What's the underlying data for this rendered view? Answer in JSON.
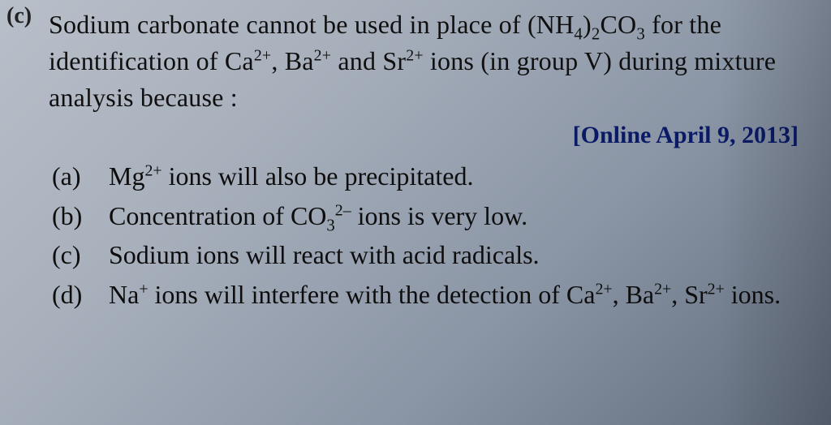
{
  "page": {
    "background_gradient": [
      "#b8bfc9",
      "#a8b0bc",
      "#8a95a5",
      "#5f6a7a"
    ],
    "text_color": "#0f0f0f",
    "font_family": "Georgia, Times New Roman, serif"
  },
  "corner": "(c)",
  "question": {
    "stem_html": "Sodium carbonate cannot be used in place of (NH<sub>4</sub>)<sub>2</sub>CO<sub>3</sub> for the identification of Ca<sup>2+</sup>, Ba<sup>2+</sup> and Sr<sup>2+</sup> ions (in group V) during mixture analysis because :",
    "source": "[Online April 9, 2013]",
    "source_color": "#0a1a66",
    "stem_fontsize": 32,
    "source_fontsize": 30
  },
  "options": [
    {
      "marker": "(a)",
      "text_html": "Mg<sup>2+</sup> ions will also be precipitated."
    },
    {
      "marker": "(b)",
      "text_html": "Concentration of CO<sub>3</sub><sup>2–</sup> ions is very low."
    },
    {
      "marker": "(c)",
      "text_html": "Sodium ions will react with acid radicals."
    },
    {
      "marker": "(d)",
      "text_html": "Na<sup>+</sup> ions will interfere with the detection of Ca<sup>2+</sup>, Ba<sup>2+</sup>, Sr<sup>2+</sup> ions."
    }
  ],
  "option_fontsize": 32
}
